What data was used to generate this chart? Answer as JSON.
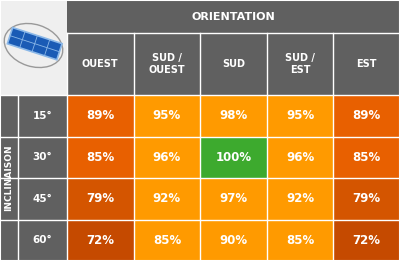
{
  "orientation_header": "ORIENTATION",
  "col_headers": [
    "OUEST",
    "SUD /\nOUEST",
    "SUD",
    "SUD /\nEST",
    "EST"
  ],
  "row_headers": [
    "15°",
    "30°",
    "45°",
    "60°"
  ],
  "values": [
    [
      "89%",
      "95%",
      "98%",
      "95%",
      "89%"
    ],
    [
      "85%",
      "96%",
      "100%",
      "96%",
      "85%"
    ],
    [
      "79%",
      "92%",
      "97%",
      "92%",
      "79%"
    ],
    [
      "72%",
      "85%",
      "90%",
      "85%",
      "72%"
    ]
  ],
  "cell_colors": [
    [
      "#E86000",
      "#FF9A00",
      "#FF9A00",
      "#FF9A00",
      "#E86000"
    ],
    [
      "#E86000",
      "#FF9A00",
      "#3DAA2E",
      "#FF9A00",
      "#E86000"
    ],
    [
      "#D45500",
      "#FF9A00",
      "#FF9A00",
      "#FF9A00",
      "#D45500"
    ],
    [
      "#C54A00",
      "#FF9A00",
      "#FF9A00",
      "#FF9A00",
      "#C54A00"
    ]
  ],
  "header_bg": "#606060",
  "row_label_bg": "#606060",
  "inclinaison_label": "INCLINAISON",
  "text_color_white": "#FFFFFF",
  "grid_line_color": "#FFFFFF",
  "top_left_bg": "#EFEFEF",
  "figsize": [
    4.0,
    2.61
  ],
  "dpi": 100
}
